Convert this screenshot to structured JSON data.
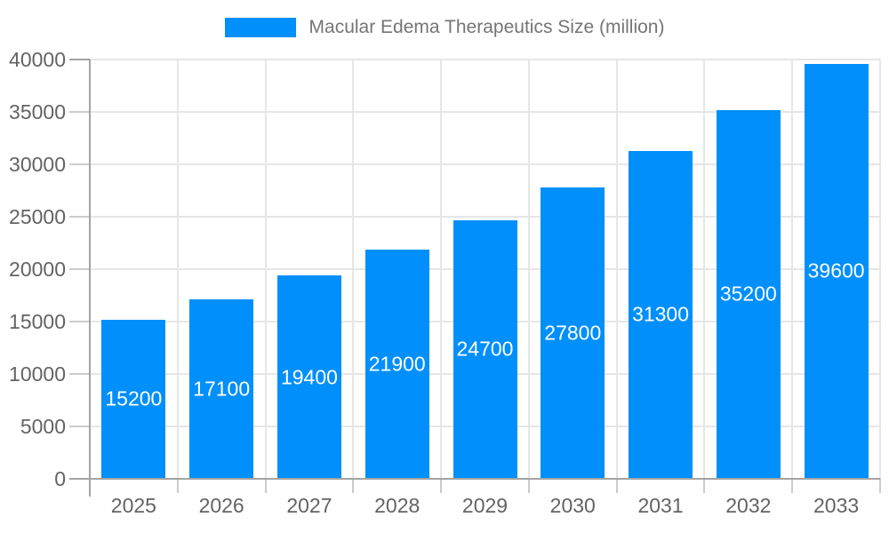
{
  "chart_data": {
    "type": "bar",
    "title": "Macular Edema Therapeutics Size (million)",
    "categories": [
      "2025",
      "2026",
      "2027",
      "2028",
      "2029",
      "2030",
      "2031",
      "2032",
      "2033"
    ],
    "values": [
      15200,
      17100,
      19400,
      21900,
      24700,
      27800,
      31300,
      35200,
      39600
    ],
    "value_labels": [
      "15200",
      "17100",
      "19400",
      "21900",
      "24700",
      "27800",
      "31300",
      "35200",
      "39600"
    ],
    "xlabel": "",
    "ylabel": "",
    "ylim": [
      0,
      40000
    ],
    "ytick_step": 5000,
    "yticks": [
      0,
      5000,
      10000,
      15000,
      20000,
      25000,
      30000,
      35000,
      40000
    ],
    "ytick_labels": [
      "0",
      "5000",
      "10000",
      "15000",
      "20000",
      "25000",
      "30000",
      "35000",
      "40000"
    ],
    "grid": true,
    "legend_position": "top-center",
    "colors": {
      "bar": "#008FFB",
      "value_label": "#ffffff",
      "axis_label": "#636363",
      "legend_text": "#757575",
      "axis_line": "#a3a3a3",
      "gridline": "#e6e6e6",
      "tick": "#cccccc",
      "background": "#ffffff"
    }
  }
}
